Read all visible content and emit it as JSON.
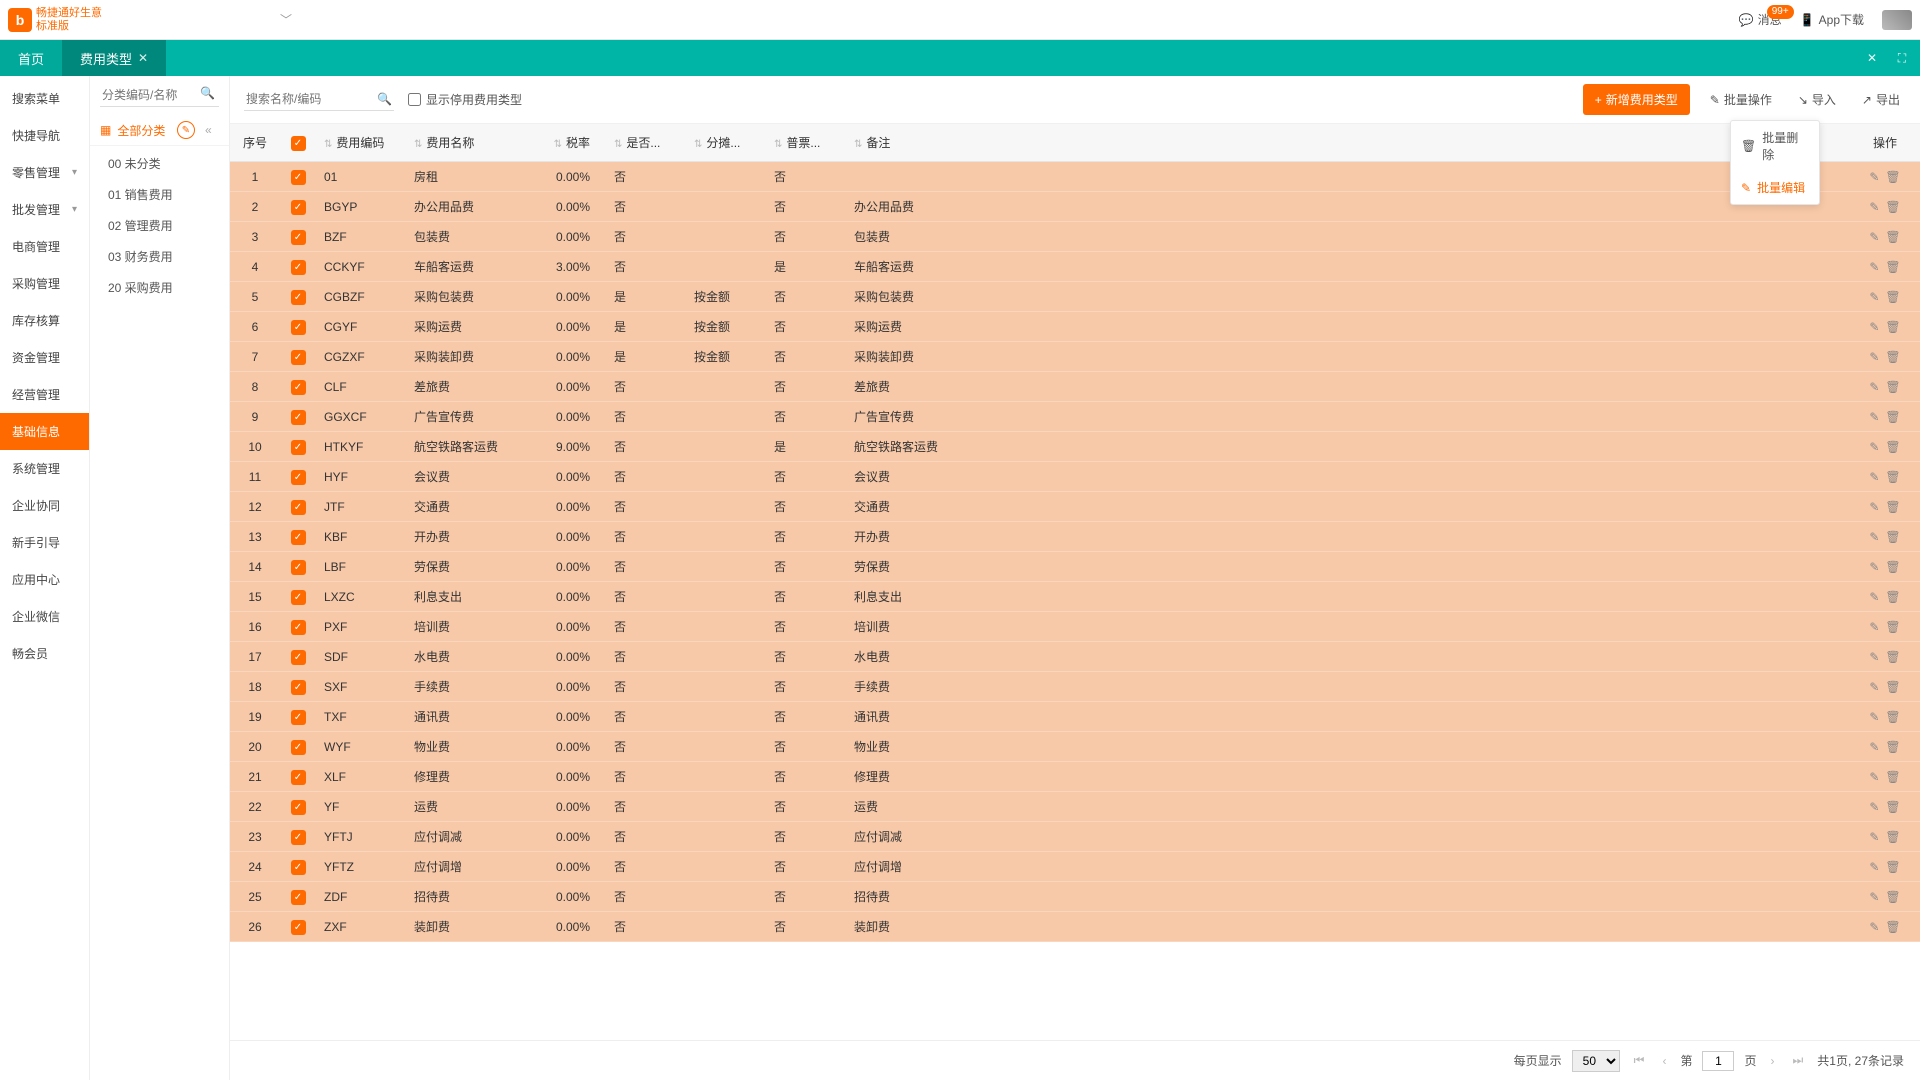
{
  "header": {
    "logo_brand": "畅捷通好生意",
    "logo_edition": "标准版",
    "messages_label": "消息",
    "messages_badge": "99+",
    "download_label": "App下载"
  },
  "tabs": {
    "home_label": "首页",
    "active_label": "费用类型"
  },
  "sidenav": [
    {
      "label": "搜索菜单",
      "caret": false
    },
    {
      "label": "快捷导航",
      "caret": false
    },
    {
      "label": "零售管理",
      "caret": true
    },
    {
      "label": "批发管理",
      "caret": true
    },
    {
      "label": "电商管理",
      "caret": false
    },
    {
      "label": "采购管理",
      "caret": false
    },
    {
      "label": "库存核算",
      "caret": false
    },
    {
      "label": "资金管理",
      "caret": false
    },
    {
      "label": "经营管理",
      "caret": false
    },
    {
      "label": "基础信息",
      "caret": false,
      "active": true
    },
    {
      "label": "系统管理",
      "caret": false
    },
    {
      "label": "企业协同",
      "caret": false
    },
    {
      "label": "新手引导",
      "caret": false
    },
    {
      "label": "应用中心",
      "caret": false
    },
    {
      "label": "企业微信",
      "caret": false
    },
    {
      "label": "畅会员",
      "caret": false
    }
  ],
  "category": {
    "search_placeholder": "分类编码/名称",
    "all_label": "全部分类",
    "items": [
      {
        "label": "00 未分类"
      },
      {
        "label": "01 销售费用"
      },
      {
        "label": "02 管理费用"
      },
      {
        "label": "03 财务费用"
      },
      {
        "label": "20 采购费用"
      }
    ]
  },
  "toolbar": {
    "search_placeholder": "搜索名称/编码",
    "show_disabled_label": "显示停用费用类型",
    "new_label": "新增费用类型",
    "batch_label": "批量操作",
    "import_label": "导入",
    "export_label": "导出",
    "popover": {
      "delete": "批量删除",
      "edit": "批量编辑"
    }
  },
  "table": {
    "columns": {
      "seq": "序号",
      "code": "费用编码",
      "name": "费用名称",
      "rate": "税率",
      "yn1": "是否...",
      "share": "分摊...",
      "yn3": "普票...",
      "remark": "备注",
      "ops": "操作"
    },
    "rows": [
      {
        "seq": 1,
        "code": "01",
        "name": "房租",
        "rate": "0.00%",
        "yn1": "否",
        "share": "",
        "yn3": "否",
        "remark": ""
      },
      {
        "seq": 2,
        "code": "BGYP",
        "name": "办公用品费",
        "rate": "0.00%",
        "yn1": "否",
        "share": "",
        "yn3": "否",
        "remark": "办公用品费"
      },
      {
        "seq": 3,
        "code": "BZF",
        "name": "包装费",
        "rate": "0.00%",
        "yn1": "否",
        "share": "",
        "yn3": "否",
        "remark": "包装费"
      },
      {
        "seq": 4,
        "code": "CCKYF",
        "name": "车船客运费",
        "rate": "3.00%",
        "yn1": "否",
        "share": "",
        "yn3": "是",
        "remark": "车船客运费"
      },
      {
        "seq": 5,
        "code": "CGBZF",
        "name": "采购包装费",
        "rate": "0.00%",
        "yn1": "是",
        "share": "按金额",
        "yn3": "否",
        "remark": "采购包装费"
      },
      {
        "seq": 6,
        "code": "CGYF",
        "name": "采购运费",
        "rate": "0.00%",
        "yn1": "是",
        "share": "按金额",
        "yn3": "否",
        "remark": "采购运费"
      },
      {
        "seq": 7,
        "code": "CGZXF",
        "name": "采购装卸费",
        "rate": "0.00%",
        "yn1": "是",
        "share": "按金额",
        "yn3": "否",
        "remark": "采购装卸费"
      },
      {
        "seq": 8,
        "code": "CLF",
        "name": "差旅费",
        "rate": "0.00%",
        "yn1": "否",
        "share": "",
        "yn3": "否",
        "remark": "差旅费"
      },
      {
        "seq": 9,
        "code": "GGXCF",
        "name": "广告宣传费",
        "rate": "0.00%",
        "yn1": "否",
        "share": "",
        "yn3": "否",
        "remark": "广告宣传费"
      },
      {
        "seq": 10,
        "code": "HTKYF",
        "name": "航空铁路客运费",
        "rate": "9.00%",
        "yn1": "否",
        "share": "",
        "yn3": "是",
        "remark": "航空铁路客运费"
      },
      {
        "seq": 11,
        "code": "HYF",
        "name": "会议费",
        "rate": "0.00%",
        "yn1": "否",
        "share": "",
        "yn3": "否",
        "remark": "会议费"
      },
      {
        "seq": 12,
        "code": "JTF",
        "name": "交通费",
        "rate": "0.00%",
        "yn1": "否",
        "share": "",
        "yn3": "否",
        "remark": "交通费"
      },
      {
        "seq": 13,
        "code": "KBF",
        "name": "开办费",
        "rate": "0.00%",
        "yn1": "否",
        "share": "",
        "yn3": "否",
        "remark": "开办费"
      },
      {
        "seq": 14,
        "code": "LBF",
        "name": "劳保费",
        "rate": "0.00%",
        "yn1": "否",
        "share": "",
        "yn3": "否",
        "remark": "劳保费"
      },
      {
        "seq": 15,
        "code": "LXZC",
        "name": "利息支出",
        "rate": "0.00%",
        "yn1": "否",
        "share": "",
        "yn3": "否",
        "remark": "利息支出"
      },
      {
        "seq": 16,
        "code": "PXF",
        "name": "培训费",
        "rate": "0.00%",
        "yn1": "否",
        "share": "",
        "yn3": "否",
        "remark": "培训费"
      },
      {
        "seq": 17,
        "code": "SDF",
        "name": "水电费",
        "rate": "0.00%",
        "yn1": "否",
        "share": "",
        "yn3": "否",
        "remark": "水电费"
      },
      {
        "seq": 18,
        "code": "SXF",
        "name": "手续费",
        "rate": "0.00%",
        "yn1": "否",
        "share": "",
        "yn3": "否",
        "remark": "手续费"
      },
      {
        "seq": 19,
        "code": "TXF",
        "name": "通讯费",
        "rate": "0.00%",
        "yn1": "否",
        "share": "",
        "yn3": "否",
        "remark": "通讯费"
      },
      {
        "seq": 20,
        "code": "WYF",
        "name": "物业费",
        "rate": "0.00%",
        "yn1": "否",
        "share": "",
        "yn3": "否",
        "remark": "物业费"
      },
      {
        "seq": 21,
        "code": "XLF",
        "name": "修理费",
        "rate": "0.00%",
        "yn1": "否",
        "share": "",
        "yn3": "否",
        "remark": "修理费"
      },
      {
        "seq": 22,
        "code": "YF",
        "name": "运费",
        "rate": "0.00%",
        "yn1": "否",
        "share": "",
        "yn3": "否",
        "remark": "运费"
      },
      {
        "seq": 23,
        "code": "YFTJ",
        "name": "应付调减",
        "rate": "0.00%",
        "yn1": "否",
        "share": "",
        "yn3": "否",
        "remark": "应付调减"
      },
      {
        "seq": 24,
        "code": "YFTZ",
        "name": "应付调增",
        "rate": "0.00%",
        "yn1": "否",
        "share": "",
        "yn3": "否",
        "remark": "应付调增"
      },
      {
        "seq": 25,
        "code": "ZDF",
        "name": "招待费",
        "rate": "0.00%",
        "yn1": "否",
        "share": "",
        "yn3": "否",
        "remark": "招待费"
      },
      {
        "seq": 26,
        "code": "ZXF",
        "name": "装卸费",
        "rate": "0.00%",
        "yn1": "否",
        "share": "",
        "yn3": "否",
        "remark": "装卸费"
      }
    ]
  },
  "pager": {
    "per_page_label": "每页显示",
    "per_page_value": "50",
    "page_prefix": "第",
    "page_value": "1",
    "page_suffix": "页",
    "summary": "共1页, 27条记录"
  },
  "colors": {
    "primary": "#ff6a00",
    "teal": "#00b5a5",
    "row_bg": "#f7c9a8"
  }
}
